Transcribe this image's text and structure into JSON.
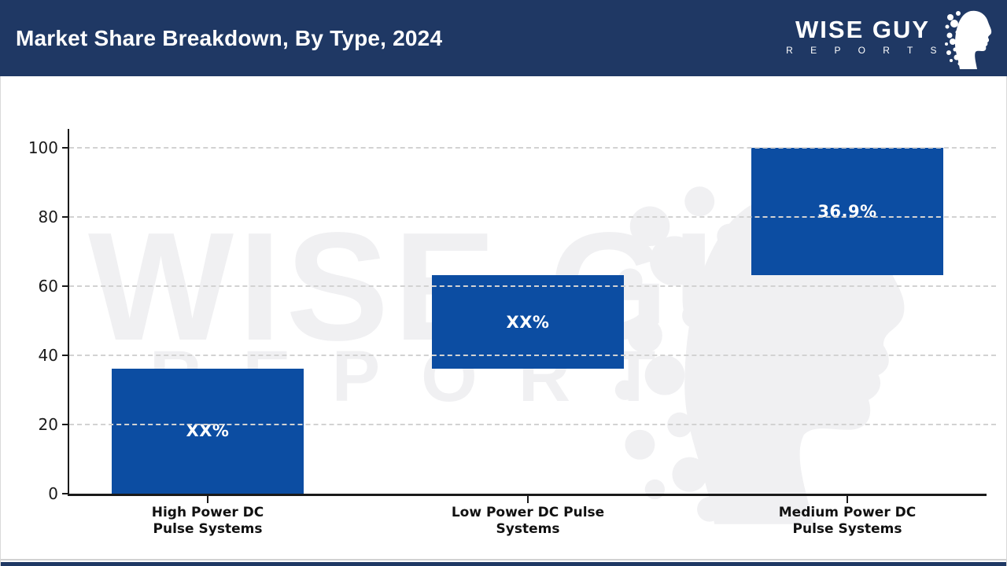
{
  "header": {
    "title": "Market Share Breakdown, By Type, 2024",
    "logo": {
      "line1": "WISE GUY",
      "line2": "R E P O R T S"
    }
  },
  "watermark": {
    "line1": "WISE GUY",
    "line2": "REPORTS"
  },
  "chart_data": {
    "type": "bar",
    "subtype": "waterfall-stacked-percentage",
    "title": "Market Share Breakdown, By Type, 2024",
    "categories": [
      "High Power DC\nPulse Systems",
      "Low Power DC Pulse\nSystems",
      "Medium Power DC\nPulse Systems"
    ],
    "segments": [
      {
        "category": "High Power DC\nPulse Systems",
        "start": 0,
        "end": 36.2,
        "value_label": "XX%"
      },
      {
        "category": "Low Power DC Pulse\nSystems",
        "start": 36.2,
        "end": 63.1,
        "value_label": "XX%"
      },
      {
        "category": "Medium Power DC\nPulse Systems",
        "start": 63.1,
        "end": 100,
        "value_label": "36.9%"
      }
    ],
    "xlabel": "",
    "ylabel": "",
    "ylim": [
      0,
      100
    ],
    "yticks": [
      0,
      20,
      40,
      60,
      80,
      100
    ],
    "grid": "horizontal-dashed",
    "legend": "none",
    "bar_color": "#0c4da2",
    "bar_label_color": "#ffffff",
    "axis_color": "#1a1a1a",
    "grid_color": "#d2d2d2"
  },
  "colors": {
    "header_bg": "#1f3864",
    "footer_bg": "#1f3864",
    "watermark": "#f0f0f2",
    "background": "#ffffff"
  }
}
